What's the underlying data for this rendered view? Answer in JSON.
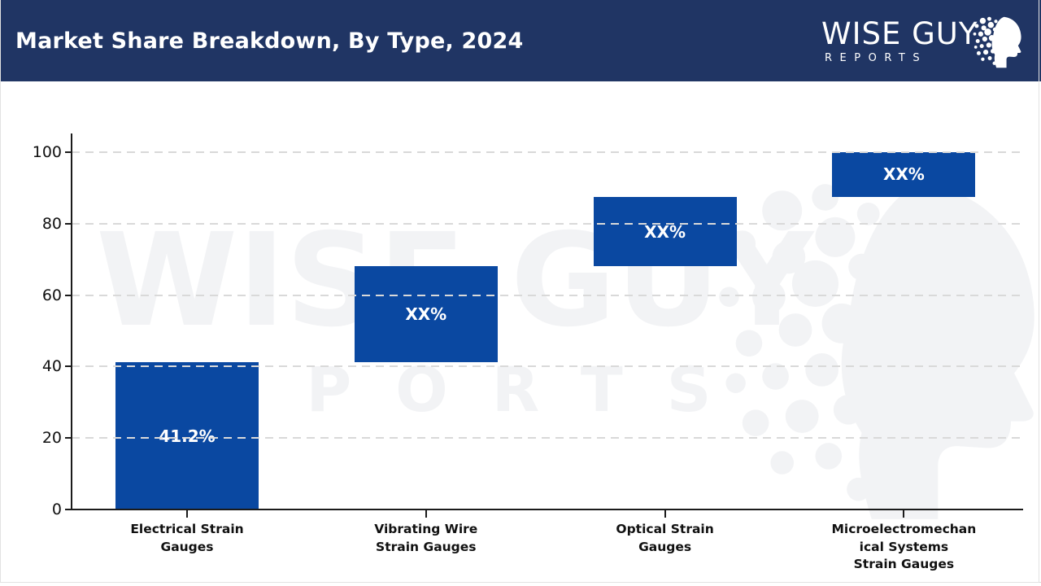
{
  "header": {
    "title": "Market Share Breakdown, By Type, 2024",
    "logo_line1": "WISE GUY",
    "logo_line2": "REPORTS"
  },
  "watermark": {
    "line1": "WISE GUY",
    "line2": "REPORTS"
  },
  "colors": {
    "header_bg": "#203564",
    "bar": "#0a48a1",
    "bar_label_text": "#ffffff",
    "gridline": "#d9d9d9",
    "watermark": "#f2f3f5",
    "axis": "#1b1b1b"
  },
  "chart_data": {
    "type": "bar",
    "subtype": "waterfall",
    "title": "Market Share Breakdown, By Type, 2024",
    "categories": [
      "Electrical Strain\nGauges",
      "Vibrating Wire\nStrain Gauges",
      "Optical Strain\nGauges",
      "Microelectromechan\nical Systems\nStrain Gauges"
    ],
    "segments": [
      {
        "start": 0,
        "end": 41.2,
        "label": "41.2%"
      },
      {
        "start": 41.2,
        "end": 68,
        "label": "XX%"
      },
      {
        "start": 68,
        "end": 87.5,
        "label": "XX%"
      },
      {
        "start": 87.5,
        "end": 100,
        "label": "XX%"
      }
    ],
    "ylim": [
      0,
      100
    ],
    "yticks": [
      0,
      20,
      40,
      60,
      80,
      100
    ],
    "grid": "horizontal-dashed",
    "legend": "none",
    "xlabel": "",
    "ylabel": ""
  }
}
